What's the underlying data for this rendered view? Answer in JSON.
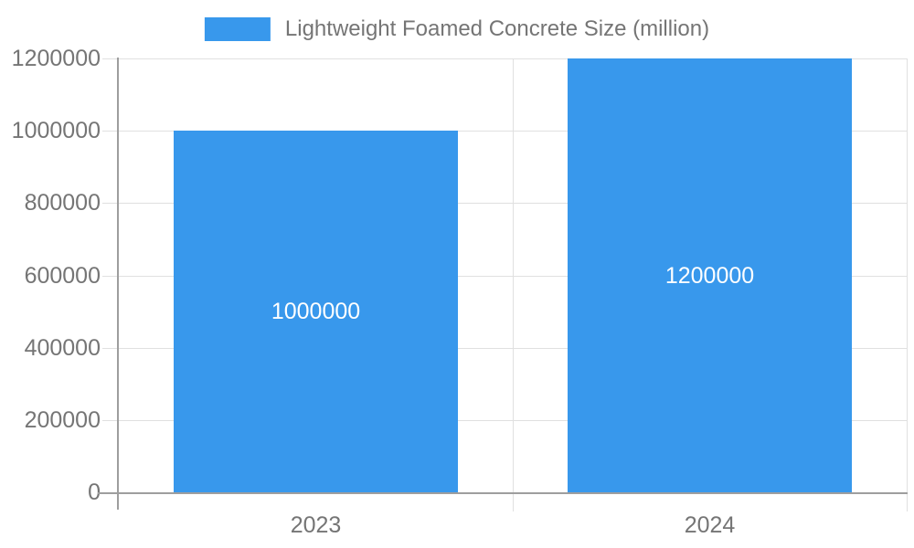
{
  "chart_data": {
    "type": "bar",
    "legend": "Lightweight Foamed Concrete Size (million)",
    "categories": [
      "2023",
      "2024"
    ],
    "values": [
      1000000,
      1200000
    ],
    "bar_labels": [
      "1000000",
      "1200000"
    ],
    "ylim": [
      0,
      1200000
    ],
    "ytick_values": [
      0,
      200000,
      400000,
      600000,
      800000,
      1000000,
      1200000
    ],
    "ytick_labels": [
      "0",
      "200000",
      "400000",
      "600000",
      "800000",
      "1000000",
      "1200000"
    ],
    "xlabel": "",
    "ylabel": "",
    "title": "",
    "grid": true,
    "legend_position": "top-center",
    "colors": {
      "bar": "#3898ec",
      "axis": "#9e9e9e",
      "grid": "#e0e0e0",
      "tick_text": "#757575",
      "legend_text": "#757575",
      "bar_label_text": "#ffffff",
      "background": "#ffffff"
    }
  }
}
